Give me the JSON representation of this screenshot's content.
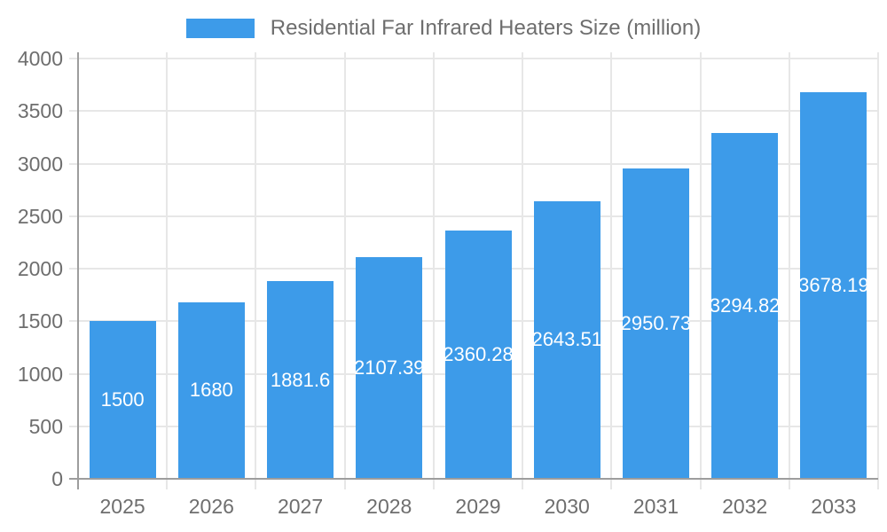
{
  "legend": {
    "label": "Residential Far Infrared Heaters Size (million)"
  },
  "chart_data": {
    "type": "bar",
    "title": "Residential Far Infrared Heaters Size (million)",
    "categories": [
      "2025",
      "2026",
      "2027",
      "2028",
      "2029",
      "2030",
      "2031",
      "2032",
      "2033"
    ],
    "series": [
      {
        "name": "Residential Far Infrared Heaters Size (million)",
        "values": [
          1500,
          1680,
          1881.6,
          2107.39,
          2360.28,
          2643.51,
          2950.73,
          3294.82,
          3678.19
        ],
        "bar_labels": [
          "1500",
          "1680",
          "1881.6",
          "2107.39",
          "2360.28",
          "2643.51",
          "2950.73",
          "3294.82",
          "3678.19"
        ],
        "color": "#3d9be9"
      }
    ],
    "xlabel": "",
    "ylabel": "",
    "ylim": [
      0,
      4000
    ],
    "ytick_step": 500,
    "ytick_labels": [
      "0",
      "500",
      "1000",
      "1500",
      "2000",
      "2500",
      "3000",
      "3500",
      "4000"
    ],
    "grid": true,
    "legend_position": "top",
    "bar_label_position": "center-inside",
    "colors": {
      "bar": "#3d9be9",
      "grid": "#e7e7e7",
      "axis": "#9d9d9d",
      "tick_text": "#6e6e6e",
      "bar_label_text": "#ffffff",
      "background": "#ffffff"
    }
  }
}
